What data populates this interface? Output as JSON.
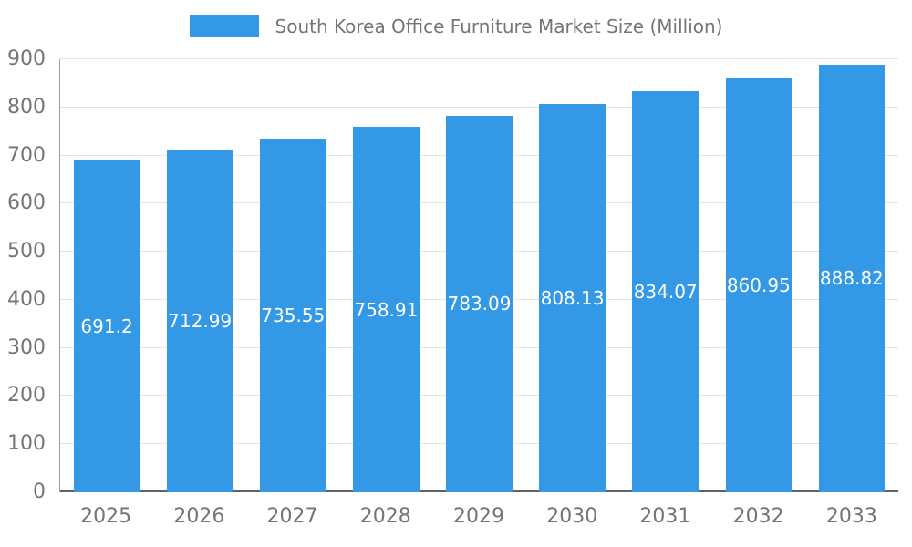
{
  "chart_data": {
    "type": "bar",
    "title": "South Korea Office Furniture Market Size (Million)",
    "categories": [
      "2025",
      "2026",
      "2027",
      "2028",
      "2029",
      "2030",
      "2031",
      "2032",
      "2033"
    ],
    "values": [
      691.2,
      712.99,
      735.55,
      758.91,
      783.09,
      808.13,
      834.07,
      860.95,
      888.82
    ],
    "value_labels": [
      "691.2",
      "712.99",
      "735.55",
      "758.91",
      "783.09",
      "808.13",
      "834.07",
      "860.95",
      "888.82"
    ],
    "xlabel": "",
    "ylabel": "",
    "ylim": [
      0,
      900
    ],
    "ytick_step": 100,
    "grid": true,
    "legend_position": "top",
    "colors": {
      "bar": "#3398e6",
      "bar_label": "#ffffff",
      "axis_text": "#757575",
      "title_text": "#757575",
      "gridline": "#e3e3e3",
      "axis_line": "#9e9e9e",
      "baseline": "#616161",
      "background": "#ffffff"
    }
  }
}
